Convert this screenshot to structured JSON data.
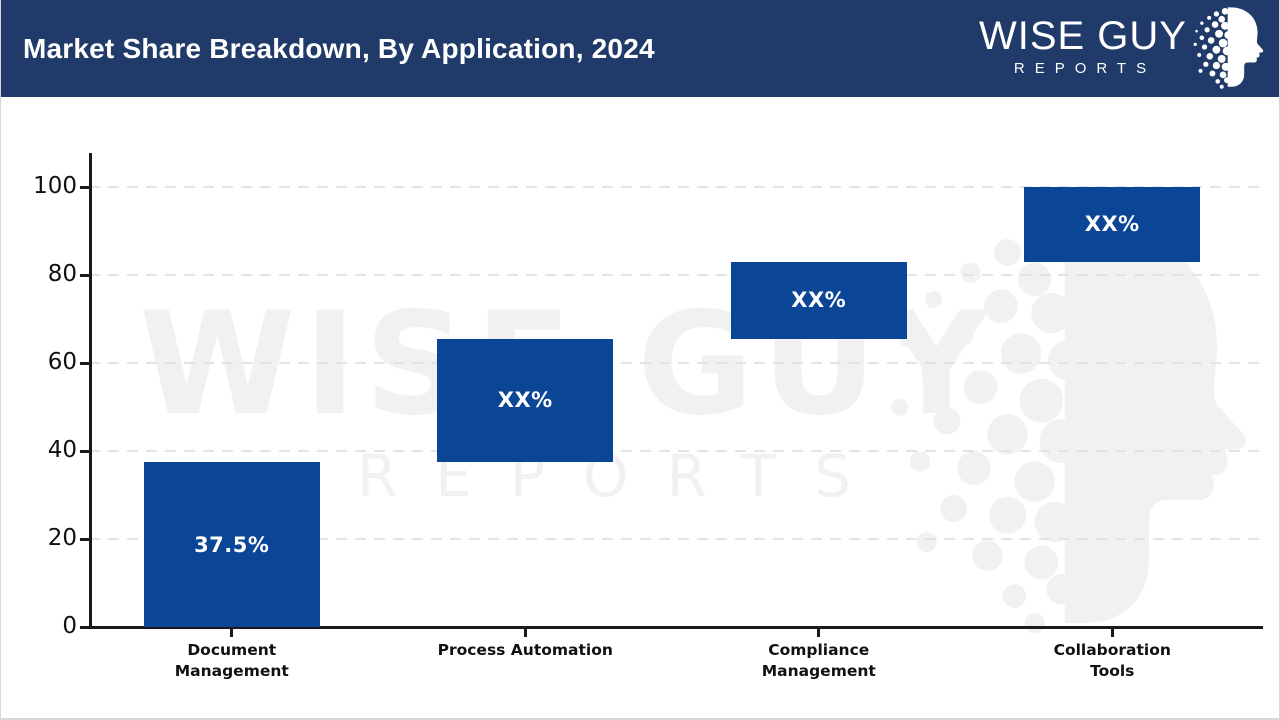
{
  "header": {
    "title": "Market Share Breakdown, By Application, 2024",
    "background_color": "#203a69",
    "logo": {
      "line1": "WISE GUY",
      "line2": "REPORTS",
      "icon": "dotted-face-profile"
    }
  },
  "watermark": {
    "line1": "WISE GUY",
    "line2": "REPORTS",
    "icon": "dotted-face-profile",
    "color": "#f1f1f1"
  },
  "chart_data": {
    "type": "bar",
    "subtype": "waterfall",
    "title": "Market Share Breakdown, By Application, 2024",
    "categories": [
      "Document Management",
      "Process Automation",
      "Compliance Management",
      "Collaboration Tools"
    ],
    "category_lines": [
      [
        "Document",
        "Management"
      ],
      [
        "Process Automation"
      ],
      [
        "Compliance",
        "Management"
      ],
      [
        "Collaboration",
        "Tools"
      ]
    ],
    "segments": [
      {
        "category": "Document Management",
        "start": 0,
        "end": 37.5,
        "label": "37.5%"
      },
      {
        "category": "Process Automation",
        "start": 37.5,
        "end": 65.5,
        "label": "XX%"
      },
      {
        "category": "Compliance Management",
        "start": 65.5,
        "end": 83,
        "label": "XX%"
      },
      {
        "category": "Collaboration Tools",
        "start": 83,
        "end": 100,
        "label": "XX%"
      }
    ],
    "xlabel": "",
    "ylabel": "",
    "ylim": [
      0,
      100
    ],
    "yticks": [
      0,
      20,
      40,
      60,
      80,
      100
    ],
    "grid": "horizontal-dashed",
    "legend": "none",
    "bar_color": "#0b4596",
    "bar_label_color": "#ffffff",
    "axis_color": "#1a1a1a"
  }
}
